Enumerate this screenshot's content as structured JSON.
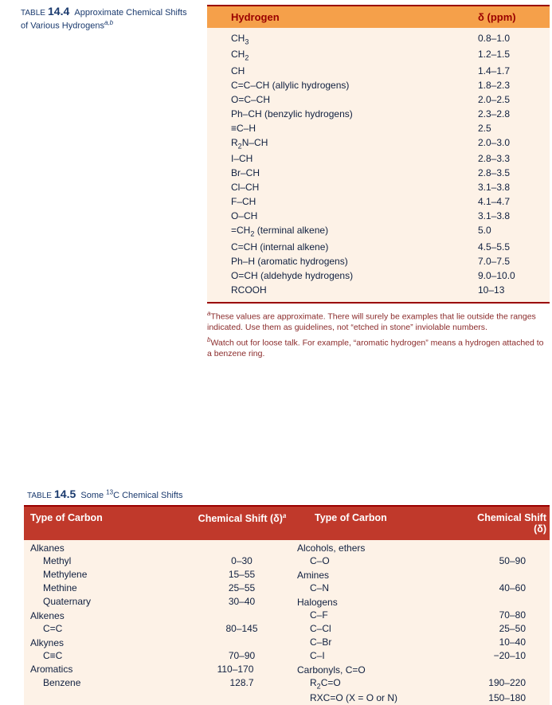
{
  "table144": {
    "caption_prefix": "TABLE",
    "caption_number": "14.4",
    "caption_text": "Approximate Chemical Shifts of Various Hydrogens",
    "caption_sup": "a,b",
    "header_col1": "Hydrogen",
    "header_col2": "δ (ppm)",
    "rows": [
      {
        "h": "CH<span class='sub'>3</span>",
        "d": "0.8–1.0"
      },
      {
        "h": "CH<span class='sub'>2</span>",
        "d": "1.2–1.5"
      },
      {
        "h": "CH",
        "d": "1.4–1.7"
      },
      {
        "h": "C=C–CH (allylic hydrogens)",
        "d": "1.8–2.3"
      },
      {
        "h": "O=C–CH",
        "d": "2.0–2.5"
      },
      {
        "h": "Ph–CH (benzylic hydrogens)",
        "d": "2.3–2.8"
      },
      {
        "h": "≡C–H",
        "d": "2.5"
      },
      {
        "h": "R<span class='sub'>2</span>N–CH",
        "d": "2.0–3.0"
      },
      {
        "h": "I–CH",
        "d": "2.8–3.3"
      },
      {
        "h": "Br–CH",
        "d": "2.8–3.5"
      },
      {
        "h": "Cl–CH",
        "d": "3.1–3.8"
      },
      {
        "h": "F–CH",
        "d": "4.1–4.7"
      },
      {
        "h": "O–CH",
        "d": "3.1–3.8"
      },
      {
        "h": "=CH<span class='sub'>2</span> (terminal alkene)",
        "d": "5.0"
      },
      {
        "h": "C=CH (internal alkene)",
        "d": "4.5–5.5"
      },
      {
        "h": "Ph–H (aromatic hydrogens)",
        "d": "7.0–7.5"
      },
      {
        "h": "O=CH (aldehyde hydrogens)",
        "d": "9.0–10.0"
      },
      {
        "h": "RCOOH",
        "d": "10–13"
      }
    ],
    "footnote_a": "These values are approximate. There will surely be examples that lie outside the ranges indicated. Use them as guidelines, not “etched in stone” inviolable numbers.",
    "footnote_b": "Watch out for loose talk. For example, “aromatic hydrogen” means a hydrogen attached to a benzene ring."
  },
  "table145": {
    "caption_prefix": "TABLE",
    "caption_number": "14.5",
    "caption_text_html": "Some <span class='sup'>13</span>C Chemical Shifts",
    "header_c1": "Type of Carbon",
    "header_c2_html": "Chemical Shift (δ)<span class='sup' style='font-style:italic'>a</span>",
    "header_c3": "Type of Carbon",
    "header_c4": "Chemical Shift (δ)",
    "left": [
      {
        "type": "group",
        "label": "Alkanes"
      },
      {
        "type": "item",
        "name": "Methyl",
        "val": "0–30"
      },
      {
        "type": "item",
        "name": "Methylene",
        "val": "15–55"
      },
      {
        "type": "item",
        "name": "Methine",
        "val": "25–55"
      },
      {
        "type": "item",
        "name": "Quaternary",
        "val": "30–40"
      },
      {
        "type": "group",
        "label": "Alkenes"
      },
      {
        "type": "item",
        "name": "C=C",
        "val": "80–145"
      },
      {
        "type": "group",
        "label": "Alkynes"
      },
      {
        "type": "item",
        "name": "C≡C",
        "val": "70–90"
      },
      {
        "type": "group",
        "label": "Aromatics",
        "val": "110–170"
      },
      {
        "type": "item",
        "name": "Benzene",
        "val": "128.7"
      }
    ],
    "right": [
      {
        "type": "group",
        "label": "Alcohols, ethers"
      },
      {
        "type": "item",
        "name": "C–O",
        "val": "50–90"
      },
      {
        "type": "group",
        "label": "Amines"
      },
      {
        "type": "item",
        "name": "C–N",
        "val": "40–60"
      },
      {
        "type": "group",
        "label": "Halogens"
      },
      {
        "type": "item",
        "name": "C–F",
        "val": "70–80"
      },
      {
        "type": "item",
        "name": "C–Cl",
        "val": "25–50"
      },
      {
        "type": "item",
        "name": "C–Br",
        "val": "10–40"
      },
      {
        "type": "item",
        "name": "C–I",
        "val": "−20–10"
      },
      {
        "type": "group",
        "label": "Carbonyls, C=O"
      },
      {
        "type": "item",
        "name": "R<span class='sub'>2</span>C=O",
        "val": "190–220"
      },
      {
        "type": "item",
        "name": "RXC=O (X = O or N)",
        "val": "150–180"
      }
    ]
  },
  "colors": {
    "header_orange": "#f5a04a",
    "header_red": "#c0392b",
    "rule_red": "#9a0000",
    "body_tint": "#fdf2e7",
    "text_blue": "#102040",
    "caption_blue": "#1a3a6e",
    "footnote_red": "#8a2a2a"
  }
}
